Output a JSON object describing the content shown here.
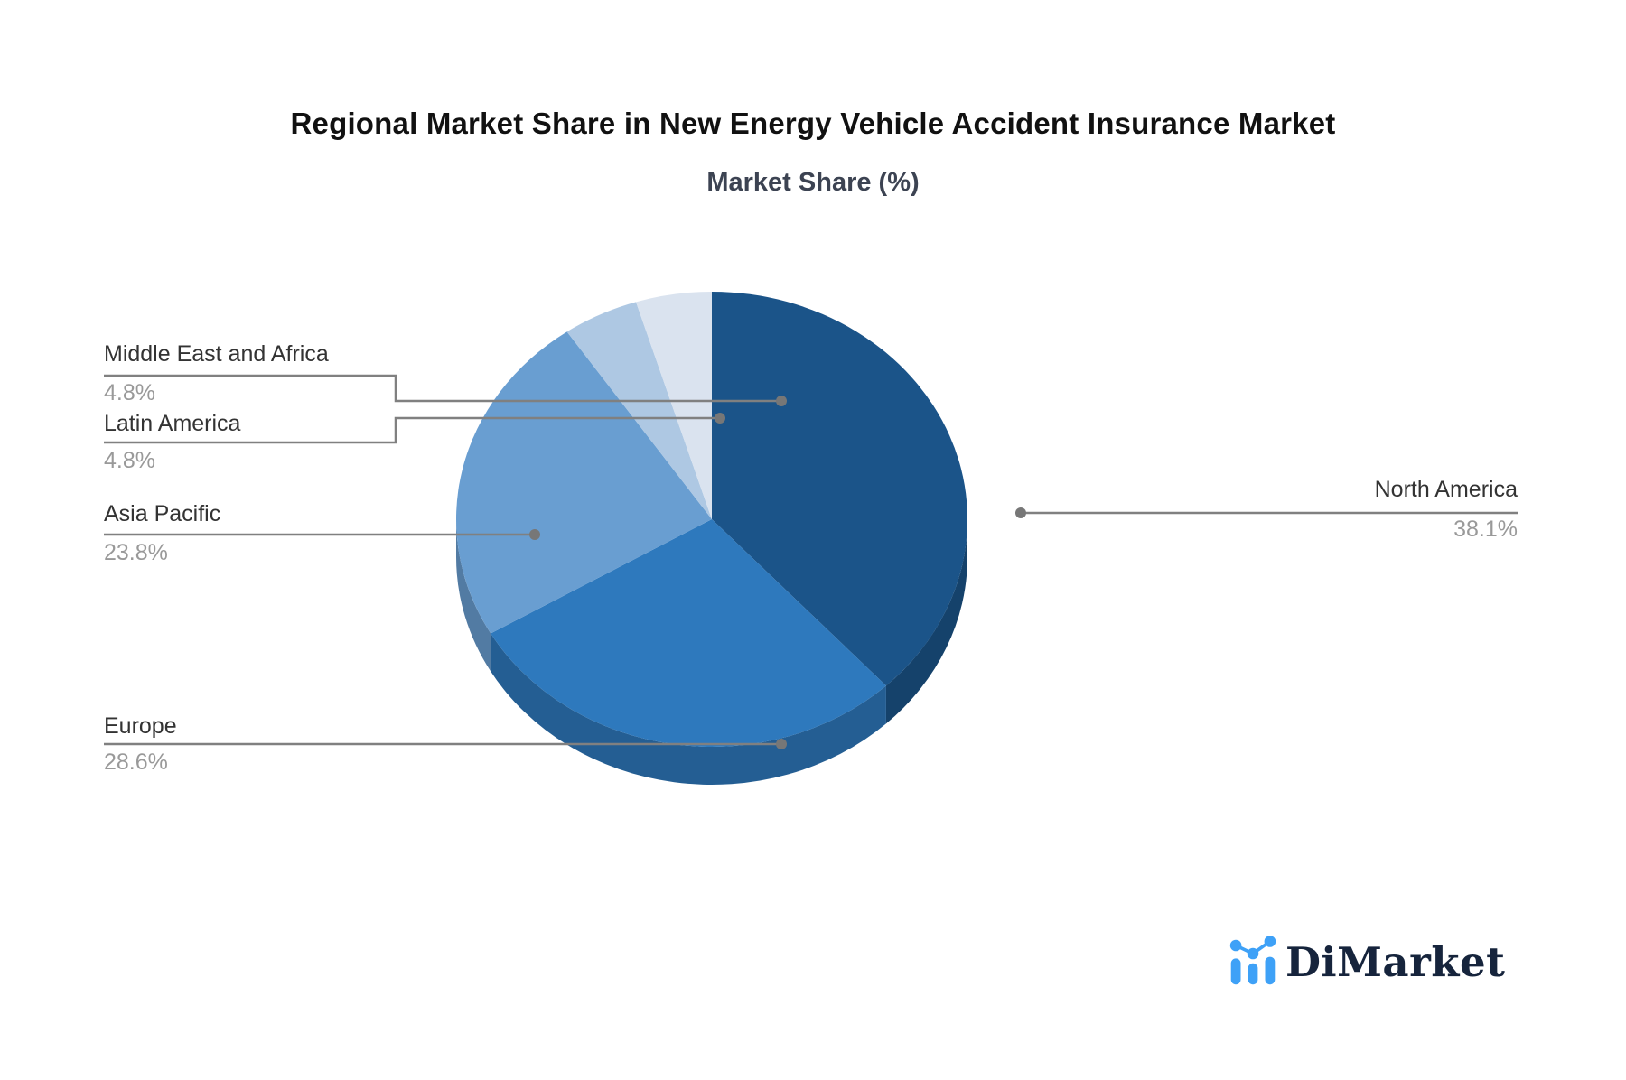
{
  "header": {
    "title": "Regional Market Share in New Energy Vehicle Accident Insurance Market",
    "subtitle": "Market Share (%)"
  },
  "chart_data": {
    "type": "pie",
    "title": "Regional Market Share in New Energy Vehicle Accident Insurance Market",
    "subtitle": "Market Share (%)",
    "unit": "%",
    "style": "3d-pie",
    "start_angle_deg": 0,
    "direction": "clockwise",
    "legend": "none",
    "slices": [
      {
        "name": "North America",
        "value": 38.1,
        "pct_label": "38.1%",
        "color": "#1B5489"
      },
      {
        "name": "Europe",
        "value": 28.6,
        "pct_label": "28.6%",
        "color": "#2E79BD"
      },
      {
        "name": "Asia Pacific",
        "value": 23.8,
        "pct_label": "23.8%",
        "color": "#699ED1"
      },
      {
        "name": "Latin America",
        "value": 4.8,
        "pct_label": "4.8%",
        "color": "#AEC8E3"
      },
      {
        "name": "Middle East and Africa",
        "value": 4.8,
        "pct_label": "4.8%",
        "color": "#DAE3EF"
      }
    ],
    "colors": {
      "label_text": "#333333",
      "pct_text": "#999999",
      "leader_line": "#808080",
      "title_text": "#111111",
      "subtitle_text": "#3C4352"
    }
  },
  "logo": {
    "text": "DiMarket",
    "icon_color": "#3EA1F7",
    "text_color": "#16243C"
  }
}
